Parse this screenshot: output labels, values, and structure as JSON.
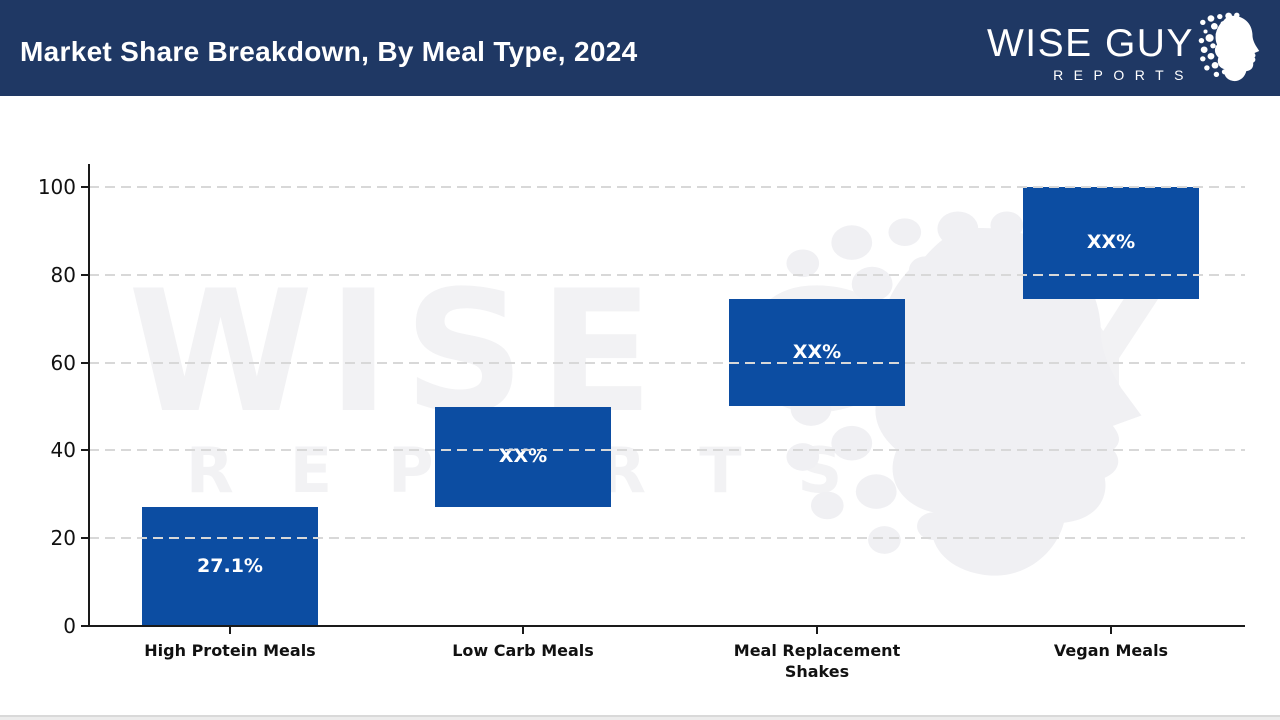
{
  "header": {
    "title": "Market Share Breakdown, By Meal Type, 2024",
    "bg_color": "#1F3864",
    "logo": {
      "name_top": "WISE GUY",
      "name_bottom": "REPORTS"
    }
  },
  "watermark": {
    "line1": "WISE GUY",
    "line2": "REPORTS"
  },
  "chart_data": {
    "type": "bar",
    "subtype": "floating-waterfall",
    "title": "Market Share Breakdown, By Meal Type, 2024",
    "categories": [
      "High Protein Meals",
      "Low Carb Meals",
      "Meal Replacement Shakes",
      "Vegan Meals"
    ],
    "series": [
      {
        "name": "Market share (%)",
        "segments": [
          {
            "category": "High Protein Meals",
            "start": 0,
            "end": 27.1,
            "label": "27.1%"
          },
          {
            "category": "Low Carb Meals",
            "start": 27.1,
            "end": 50,
            "label": "XX%"
          },
          {
            "category": "Meal Replacement Shakes",
            "start": 50,
            "end": 74.5,
            "label": "XX%"
          },
          {
            "category": "Vegan Meals",
            "start": 74.5,
            "end": 100,
            "label": "XX%"
          }
        ]
      }
    ],
    "xlabel": "",
    "ylabel": "",
    "ylim": [
      0,
      105
    ],
    "yticks": [
      0,
      20,
      40,
      60,
      80,
      100
    ],
    "grid": "horizontal-dashed",
    "legend": "none",
    "bar_color": "#0C4DA2",
    "bar_label_color": "#FFFFFF",
    "axis_color": "#1a1a1a",
    "grid_color": "#d8d8d8"
  }
}
